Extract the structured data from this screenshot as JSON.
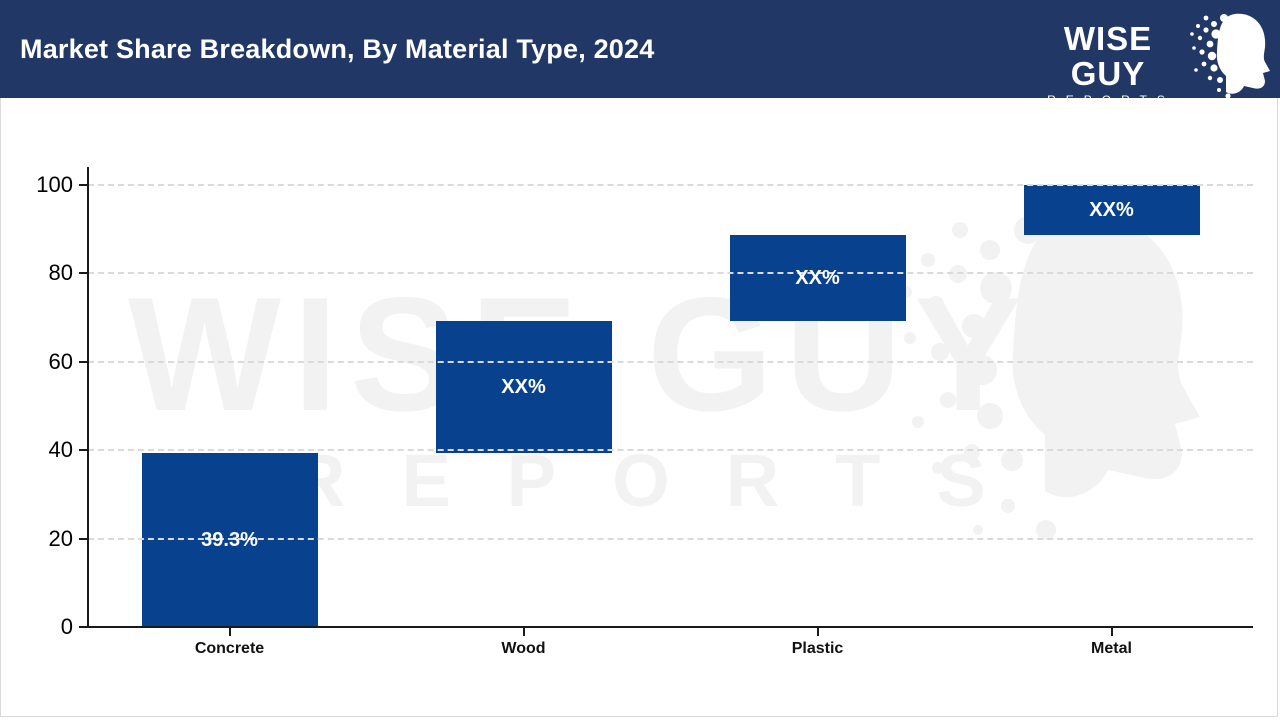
{
  "header": {
    "title": "Market Share Breakdown, By Material Type, 2024",
    "background_color": "#213765",
    "logo": {
      "line1": "WISE GUY",
      "line2": "REPORTS"
    }
  },
  "watermark": {
    "line1": "WISE GUY",
    "line2": "REPORTS"
  },
  "chart_data": {
    "type": "bar",
    "subtype": "waterfall",
    "title": "Market Share Breakdown, By Material Type, 2024",
    "categories": [
      "Concrete",
      "Wood",
      "Plastic",
      "Metal"
    ],
    "segments": [
      {
        "category": "Concrete",
        "start": 0,
        "end": 39.3,
        "label": "39.3%"
      },
      {
        "category": "Wood",
        "start": 39.3,
        "end": 69.2,
        "label": "XX%"
      },
      {
        "category": "Plastic",
        "start": 69.2,
        "end": 88.6,
        "label": "XX%"
      },
      {
        "category": "Metal",
        "start": 88.6,
        "end": 100,
        "label": "XX%"
      }
    ],
    "y_ticks": [
      0,
      20,
      40,
      60,
      80,
      100
    ],
    "ylim": [
      0,
      100
    ],
    "xlabel": "",
    "ylabel": "",
    "grid": "horizontal-dashed",
    "grid_above_bars": true,
    "legend": "none",
    "bar_color": "#08428F",
    "bar_label_color": "#ffffff",
    "axis_color": "#1a1a1a",
    "gridline_color": "#dadada"
  }
}
